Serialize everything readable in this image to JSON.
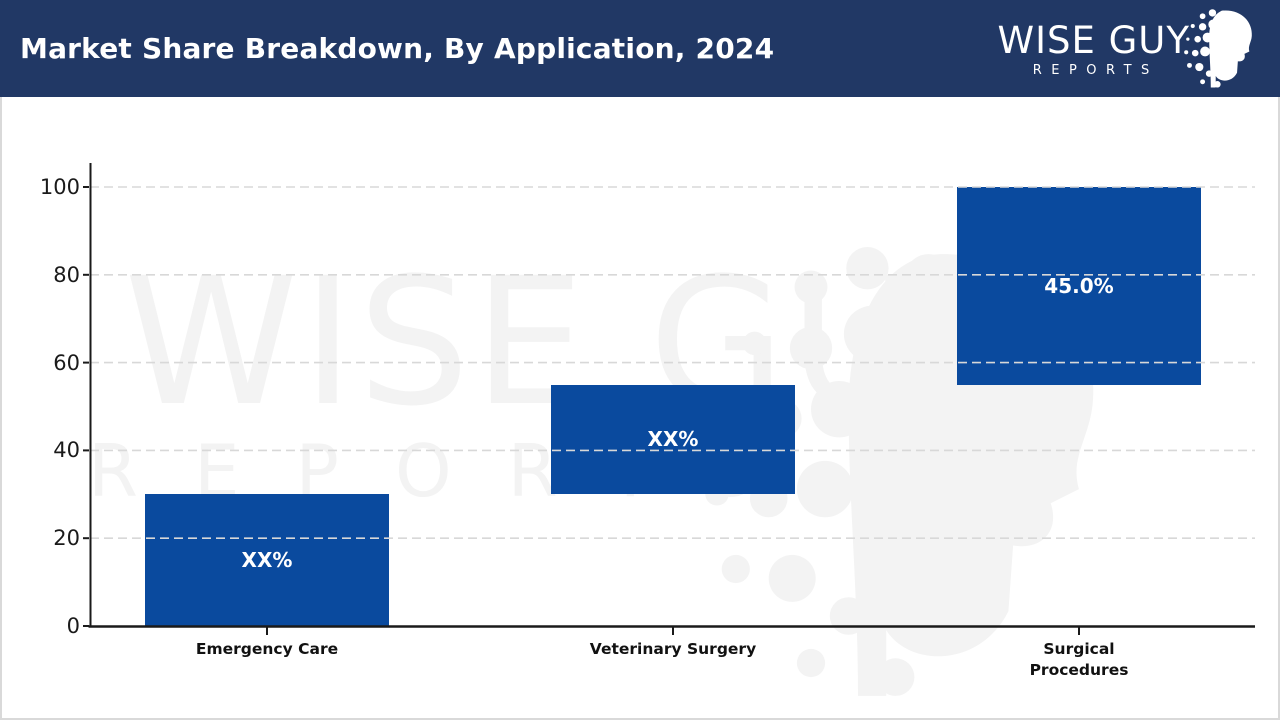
{
  "header": {
    "title": "Market Share Breakdown, By Application, 2024",
    "logo": {
      "brand": "WISE GUY",
      "sub": "REPORTS"
    }
  },
  "watermark": {
    "brand": "WISE GUY",
    "sub": "REPORTS"
  },
  "colors": {
    "header_bg": "#213865",
    "bar_blue": "#0A4A9E",
    "gridline": "#D8D8D8",
    "axis": "#1A1A1A",
    "watermark_gray": "#F3F3F3",
    "border_gray": "#D9D9D9",
    "bar_label": "#FFFFFF"
  },
  "chart_data": {
    "type": "bar",
    "subtype": "waterfall",
    "title": "Market Share Breakdown, By Application, 2024",
    "categories": [
      "Emergency Care",
      "Veterinary Surgery",
      "Surgical Procedures"
    ],
    "display_categories": [
      "Emergency Care",
      "Veterinary Surgery",
      "Surgical\nProcedures"
    ],
    "bars": [
      {
        "category": "Emergency Care",
        "start": 0,
        "end": 30,
        "segment_value": 30,
        "label": "XX%"
      },
      {
        "category": "Veterinary Surgery",
        "start": 30,
        "end": 55,
        "segment_value": 25,
        "label": "XX%"
      },
      {
        "category": "Surgical Procedures",
        "start": 55,
        "end": 100,
        "segment_value": 45,
        "label": "45.0%"
      }
    ],
    "ylim": [
      0,
      100
    ],
    "yticks": [
      0,
      20,
      40,
      60,
      80,
      100
    ],
    "grid": true,
    "grid_style": "dashed",
    "legend": false,
    "bar_color": "#0A4A9E",
    "label_color": "#FFFFFF"
  }
}
